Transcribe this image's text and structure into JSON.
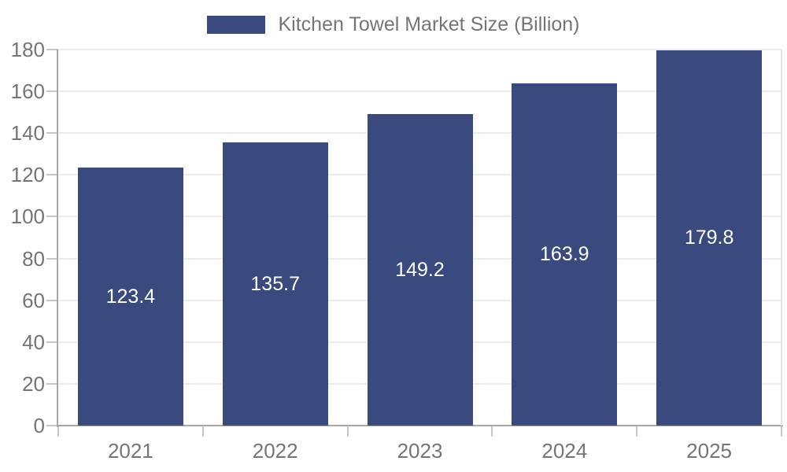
{
  "chart_data": {
    "type": "bar",
    "legend": [
      "Kitchen Towel Market Size (Billion)"
    ],
    "categories": [
      "2021",
      "2022",
      "2023",
      "2024",
      "2025"
    ],
    "values": [
      123.4,
      135.7,
      149.2,
      163.9,
      179.8
    ],
    "value_labels": [
      "123.4",
      "135.7",
      "149.2",
      "163.9",
      "179.8"
    ],
    "ylim": [
      0,
      180
    ],
    "ytick_step": 20,
    "yticks": [
      "0",
      "20",
      "40",
      "60",
      "80",
      "100",
      "120",
      "140",
      "160",
      "180"
    ],
    "grid": true,
    "legend_position": "top-center",
    "value_label_position": "inside-center"
  },
  "colors": {
    "bar": "#3A4A7E",
    "grid": "#ECECEC",
    "axis": "#A8A8A8",
    "plot_right_border": "#E3E3E3",
    "tick_mark": "#C6C6C6",
    "tick_text": "#757575",
    "value_label_text": "#FFFFFF",
    "background": "#FFFFFF"
  }
}
